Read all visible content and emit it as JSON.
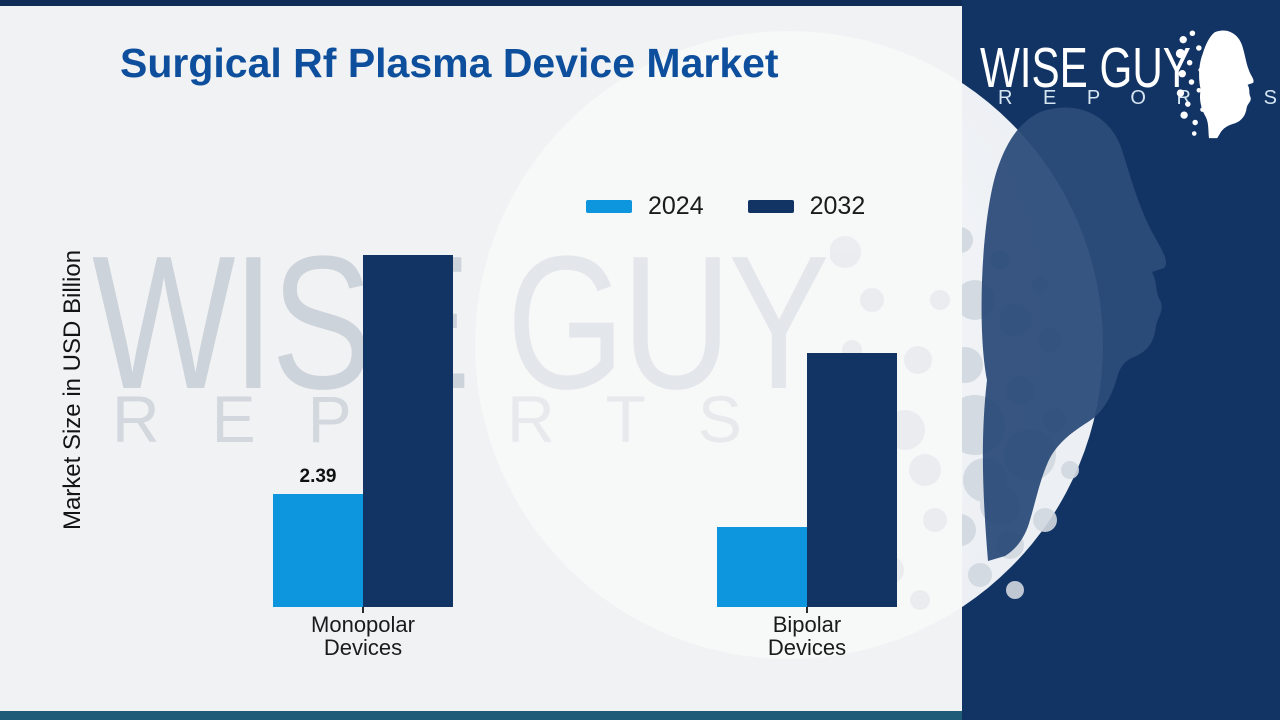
{
  "title": {
    "text": "Surgical Rf Plasma Device Market"
  },
  "logo": {
    "line1": "WISE GUY",
    "line2": "R E P O R T S"
  },
  "watermark": {
    "line1": "WISE GUY",
    "line2": "REPORTS"
  },
  "legend": [
    {
      "label": "2024",
      "color": "#0d96de"
    },
    {
      "label": "2032",
      "color": "#123465"
    }
  ],
  "chart_data": {
    "type": "bar",
    "title": "Surgical Rf Plasma Device Market",
    "categories": [
      "Monopolar Devices",
      "Bipolar Devices"
    ],
    "series": [
      {
        "name": "2024",
        "color": "#0d96de",
        "values": [
          2.39,
          1.69
        ]
      },
      {
        "name": "2032",
        "color": "#123465",
        "values": [
          7.44,
          5.37
        ]
      }
    ],
    "ylabel": "Market Size in USD Billion",
    "xlabel": "",
    "ylim": [
      0,
      8
    ],
    "grid": false,
    "y_axis_ticks_visible": false,
    "legend_position": "top-center",
    "point_labels": [
      {
        "series": 0,
        "category": 0,
        "text": "2.39"
      }
    ]
  },
  "colors": {
    "background": "#f1f2f3",
    "title_blue": "#0e4f9d",
    "accent_blue_2024": "#0d96de",
    "navy_2032": "#123465",
    "brand_panel_navy": "#123465",
    "bottom_strip_teal": "#1e5c78",
    "top_strip_navy": "#0f2d56",
    "watermark_gray": "#aab3c2"
  }
}
